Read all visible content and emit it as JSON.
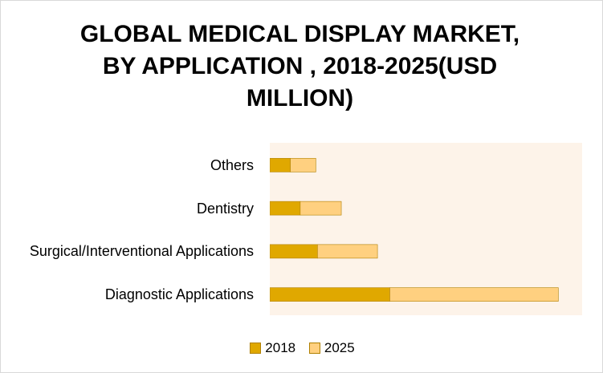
{
  "chart_data": {
    "type": "bar",
    "orientation": "horizontal",
    "stacked": true,
    "title": "GLOBAL MEDICAL DISPLAY MARKET,\nBY APPLICATION , 2018-2025(USD\nMILLION)",
    "categories": [
      "Others",
      "Dentistry",
      "Surgical/Interventional Applications",
      "Diagnostic Applications"
    ],
    "series": [
      {
        "name": "2018",
        "values": [
          25,
          37,
          58,
          146
        ],
        "color": "#e0a800"
      },
      {
        "name": "2025",
        "values": [
          31,
          50,
          73,
          205
        ],
        "color": "#ffd080"
      }
    ],
    "xlim": [
      0,
      380
    ],
    "grid": false,
    "legend_position": "bottom",
    "plot_background": "#fdf3e9"
  }
}
